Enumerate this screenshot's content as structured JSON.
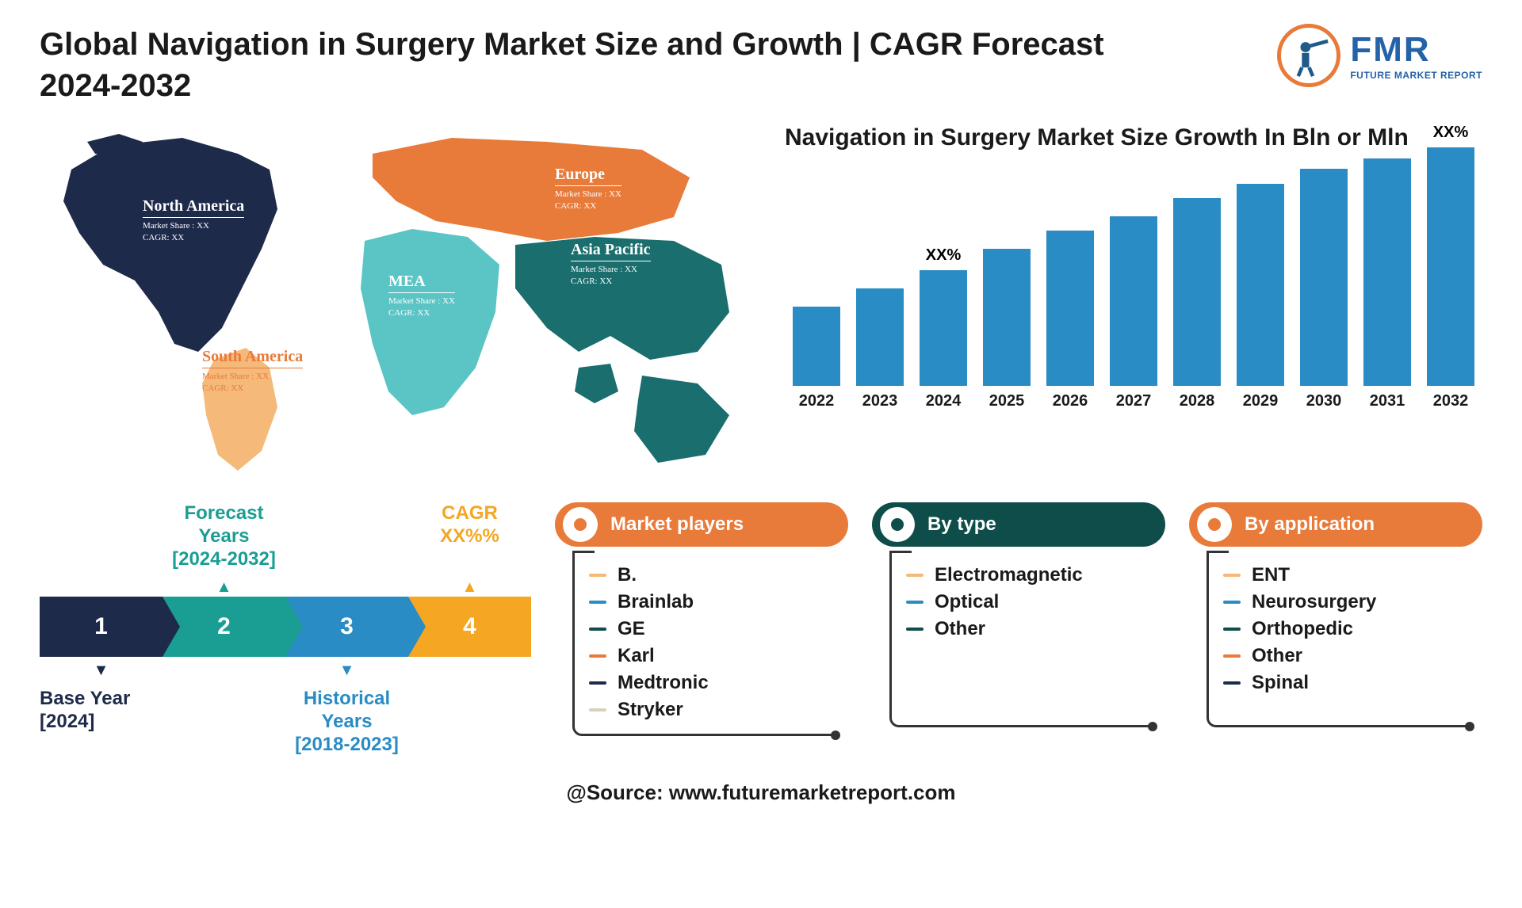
{
  "title": "Global Navigation in Surgery Market Size and Growth | CAGR Forecast 2024-2032",
  "logo": {
    "fmr": "FMR",
    "sub": "FUTURE MARKET REPORT",
    "icon_color": "#e87a3a",
    "person_color": "#1e5a8a"
  },
  "map": {
    "regions": {
      "na": {
        "name": "North America",
        "share": "Market Share : XX",
        "cagr": "CAGR: XX",
        "fill": "#1e2a4a"
      },
      "sa": {
        "name": "South America",
        "share": "Market Share : XX",
        "cagr": "CAGR: XX",
        "fill": "#f5b97a"
      },
      "mea": {
        "name": "MEA",
        "share": "Market Share : XX",
        "cagr": "CAGR: XX",
        "fill": "#5bc4c4"
      },
      "eu": {
        "name": "Europe",
        "share": "Market Share : XX",
        "cagr": "CAGR: XX",
        "fill": "#e87a3a"
      },
      "apac": {
        "name": "Asia Pacific",
        "share": "Market Share : XX",
        "cagr": "CAGR: XX",
        "fill": "#1a6e6e"
      }
    }
  },
  "chart": {
    "type": "bar",
    "title": "Navigation in Surgery Market Size Growth In Bln or Mln",
    "categories": [
      "2022",
      "2023",
      "2024",
      "2025",
      "2026",
      "2027",
      "2028",
      "2029",
      "2030",
      "2031",
      "2032"
    ],
    "values": [
      110,
      135,
      160,
      190,
      215,
      235,
      260,
      280,
      300,
      315,
      330
    ],
    "bar_color": "#2a8cc4",
    "ylim": [
      0,
      340
    ],
    "label_fontsize": 20,
    "annotations": {
      "2024": "XX%",
      "2032": "XX%"
    }
  },
  "timeline": {
    "forecast": {
      "label": "Forecast Years",
      "range": "[2024-2032]",
      "color": "#1a9e94"
    },
    "cagr": {
      "label": "CAGR",
      "value": "XX%%",
      "color": "#f5a623"
    },
    "base": {
      "label": "Base Year",
      "range": "[2024]",
      "color": "#1e2a4a"
    },
    "hist": {
      "label": "Historical Years",
      "range": "[2018-2023]",
      "color": "#2a8cc4"
    },
    "segments": [
      "1",
      "2",
      "3",
      "4"
    ],
    "segment_colors": [
      "#1e2a4a",
      "#1a9e94",
      "#2a8cc4",
      "#f5a623"
    ]
  },
  "pills": {
    "players": {
      "label": "Market players",
      "bg": "#e87a3a",
      "items": [
        "B.",
        "Brainlab",
        "GE",
        "Karl",
        "Medtronic",
        "Stryker"
      ]
    },
    "type": {
      "label": "By type",
      "bg": "#0e4d4a",
      "items": [
        "Electromagnetic",
        "Optical",
        "Other"
      ]
    },
    "application": {
      "label": "By application",
      "bg": "#e87a3a",
      "items": [
        "ENT",
        "Neurosurgery",
        "Orthopedic",
        "Other",
        "Spinal"
      ]
    }
  },
  "tick_colors": [
    "#f5b97a",
    "#2a8cc4",
    "#0e4d4a",
    "#e87a3a",
    "#1e2a4a",
    "#d9d0b8"
  ],
  "footer": "@Source: www.futuremarketreport.com"
}
